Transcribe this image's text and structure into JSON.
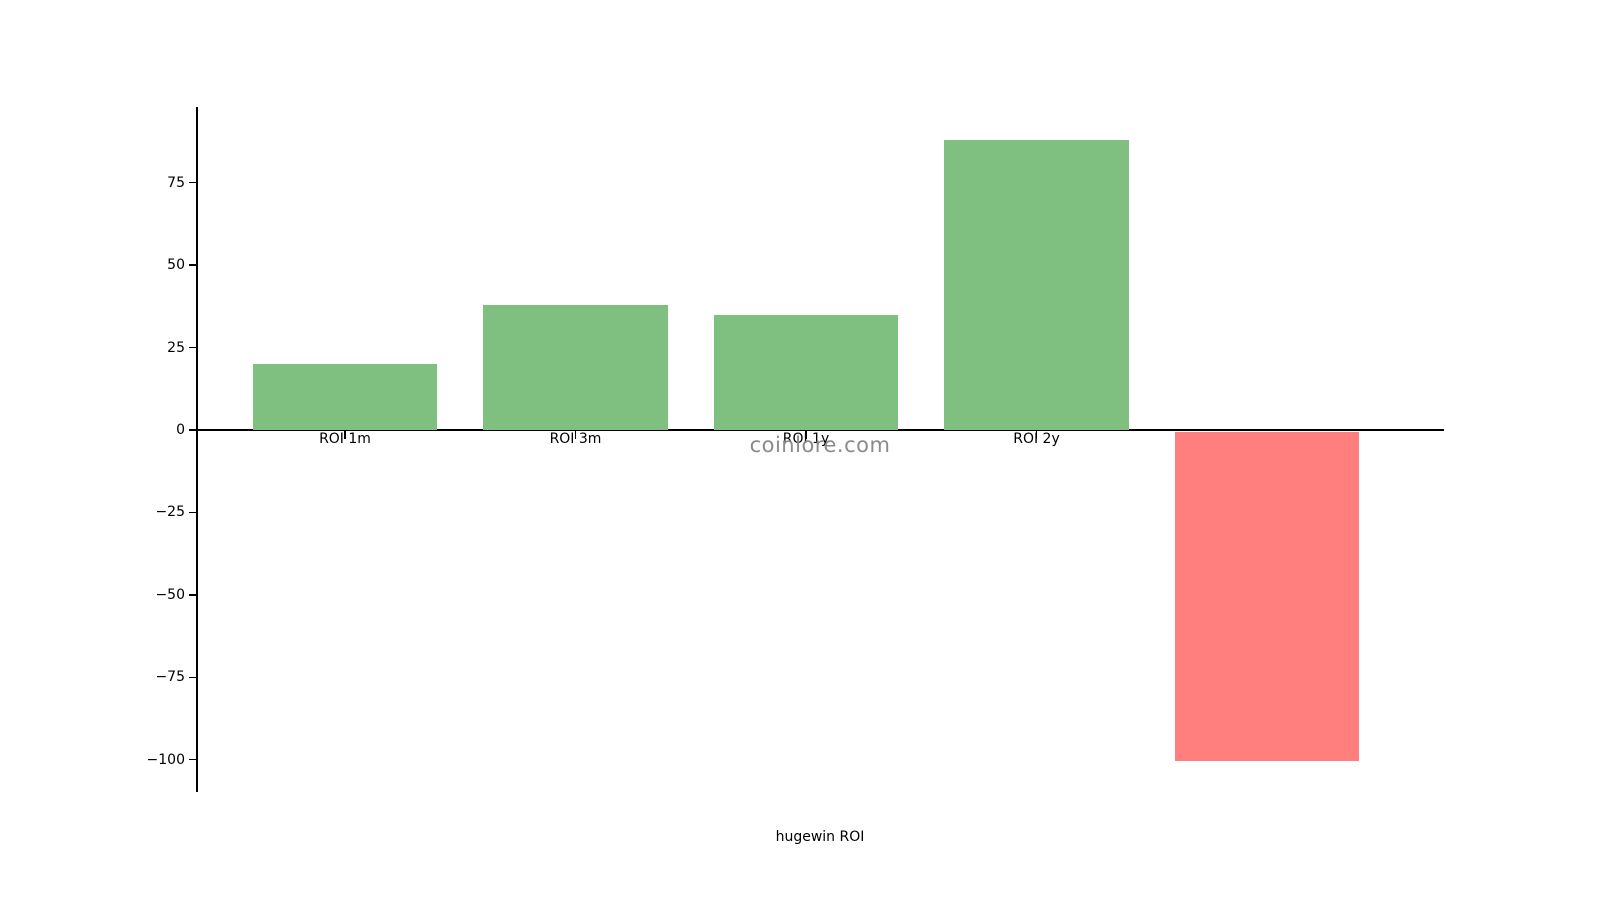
{
  "page": {
    "background": "#ffffff"
  },
  "chart_data": {
    "type": "bar",
    "categories": [
      "ROI 1m",
      "ROI 3m",
      "ROI 1y",
      "ROI 2y",
      ""
    ],
    "values": [
      20,
      38,
      35,
      88,
      -100
    ],
    "title": "",
    "xlabel": "hugewin ROI",
    "ylabel": "",
    "y_ticks": [
      75,
      50,
      25,
      0,
      -25,
      -50,
      -75,
      -100
    ],
    "ylim": [
      -110,
      97
    ],
    "grid": false,
    "legend_position": "none",
    "bar_colors": {
      "positive": "#7fbf7f",
      "negative": "#ff7f7f"
    },
    "axis_color": "#000000",
    "tick_label_color": "#000000",
    "watermark": {
      "text": "coinlore.com",
      "color": "#8b8b8b"
    }
  }
}
